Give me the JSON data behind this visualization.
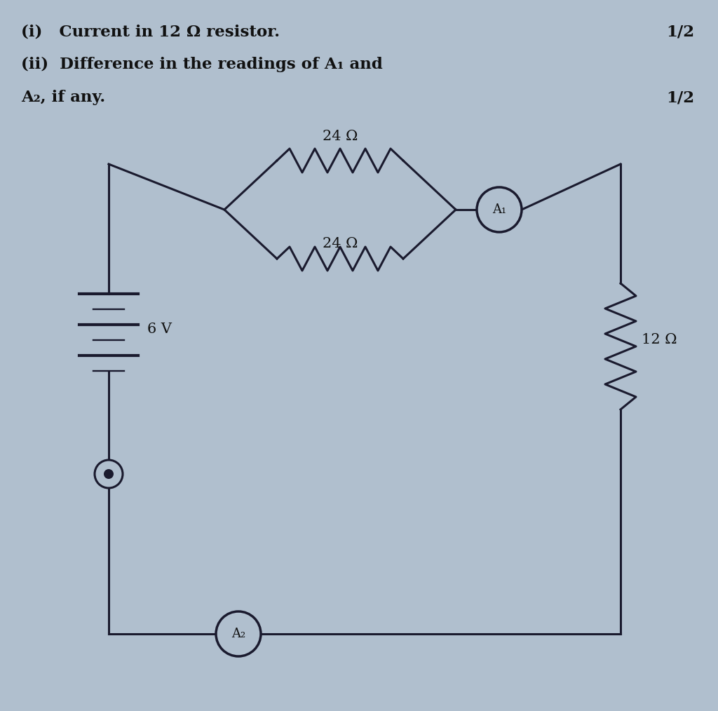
{
  "background_color": "#b0bfce",
  "text_color": "#111111",
  "circuit_color": "#1a1a2e",
  "title_line1": "(i)   Current in 12 Ω resistor.",
  "title_line1_mark": "1/2",
  "title_line2": "(ii)  Difference in the readings of A₁ and",
  "title_line3": "A₂, if any.",
  "title_line3_mark": "1/2",
  "resistor_24_top_label": "24 Ω",
  "resistor_24_bot_label": "24 Ω",
  "resistor_12_label": "12 Ω",
  "battery_label": "6 V",
  "ammeter1_label": "A₁",
  "ammeter2_label": "A₂",
  "lw": 2.2
}
